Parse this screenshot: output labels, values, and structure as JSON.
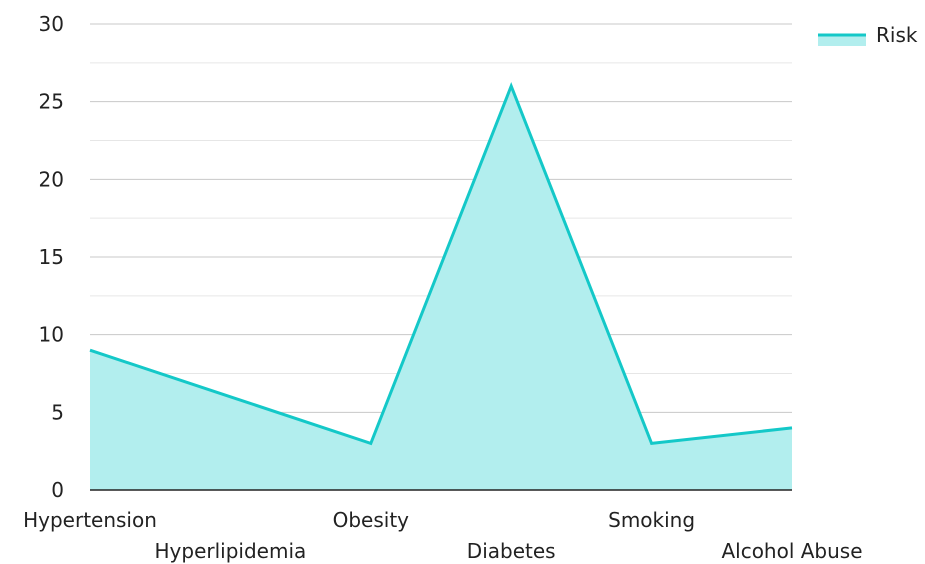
{
  "chart_data": {
    "type": "area",
    "categories": [
      "Hypertension",
      "Hyperlipidemia",
      "Obesity",
      "Diabetes",
      "Smoking",
      "Alcohol Abuse"
    ],
    "series": [
      {
        "name": "Risk",
        "values": [
          9,
          6,
          3,
          26,
          3,
          4
        ]
      }
    ],
    "ylim": [
      0,
      30
    ],
    "yticks": [
      0,
      5,
      10,
      15,
      20,
      25,
      30
    ],
    "grid": true,
    "legend_position": "top-right",
    "colors": {
      "line": "#14c8c8",
      "fill": "#b2eeee",
      "grid_major": "#c8c8c8",
      "grid_minor": "#e6e6e6",
      "axis": "#222222"
    }
  }
}
